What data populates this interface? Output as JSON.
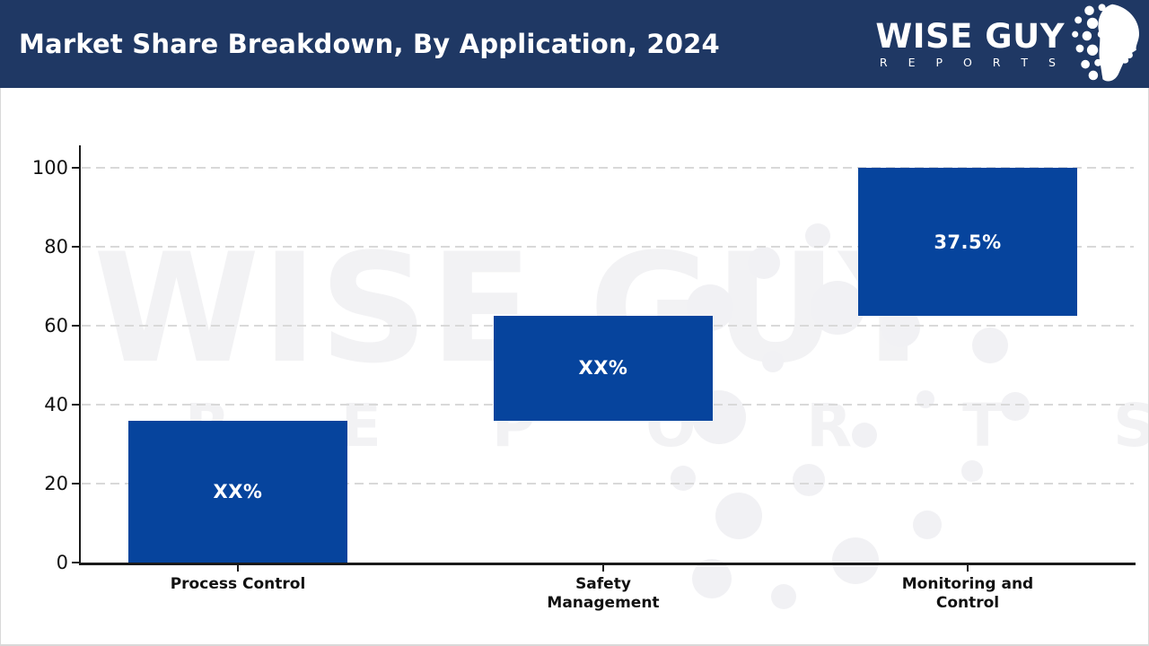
{
  "header": {
    "title": "Market Share Breakdown, By Application, 2024",
    "logo": {
      "name": "WISE GUY",
      "subname": "R E P O R T S"
    }
  },
  "watermark": {
    "line1": "WISE GUY",
    "line2": "R E P O R T S"
  },
  "colors": {
    "header_bg": "#1f3864",
    "bar": "#06449d",
    "bar_label": "#ffffff",
    "grid": "#d9d9d9",
    "axis": "#1a1a1a",
    "watermark": "#f2f2f4"
  },
  "chart_data": {
    "type": "bar",
    "subtype": "floating-segment-waterfall",
    "title": "Market Share Breakdown, By Application, 2024",
    "categories": [
      "Process Control",
      "Safety Management",
      "Monitoring and Control"
    ],
    "segments": [
      {
        "category": "Process Control",
        "start": 0,
        "end": 36,
        "label": "XX%"
      },
      {
        "category": "Safety Management",
        "start": 36,
        "end": 62.5,
        "label": "XX%"
      },
      {
        "category": "Monitoring and Control",
        "start": 62.5,
        "end": 100,
        "label": "37.5%"
      }
    ],
    "ylim": [
      0,
      100
    ],
    "yticks": [
      0,
      20,
      40,
      60,
      80,
      100
    ],
    "xlabel": "",
    "ylabel": "",
    "grid": "horizontal-dashed",
    "legend": "none",
    "bar_color": "#06449d",
    "label_color": "#ffffff"
  }
}
